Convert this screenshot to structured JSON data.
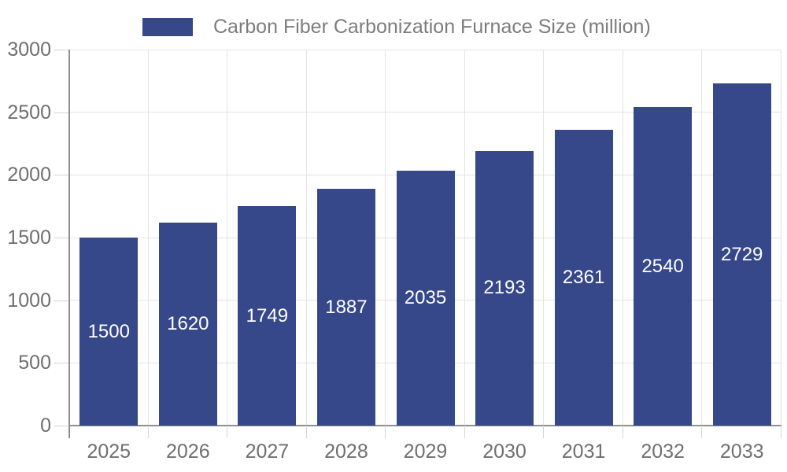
{
  "legend": {
    "label": "Carbon Fiber Carbonization Furnace Size (million)"
  },
  "colors": {
    "bar": "#36478A",
    "grid_line": "#E4E4E4",
    "tick_line": "#D6D6D6",
    "axis_line": "#8F8F8F",
    "tick_label": "#6F6F6F",
    "legend_text": "#7D7D7D",
    "value_label": "#FFFFFF",
    "background": "#FFFFFF"
  },
  "chart_data": {
    "type": "bar",
    "title": "Carbon Fiber Carbonization Furnace Size (million)",
    "categories": [
      "2025",
      "2026",
      "2027",
      "2028",
      "2029",
      "2030",
      "2031",
      "2032",
      "2033"
    ],
    "series": [
      {
        "name": "Carbon Fiber Carbonization Furnace Size (million)",
        "values": [
          1500,
          1620,
          1749,
          1887,
          2035,
          2193,
          2361,
          2540,
          2729
        ]
      }
    ],
    "xlabel": "",
    "ylabel": "",
    "ylim": [
      0,
      3000
    ],
    "y_ticks": [
      0,
      500,
      1000,
      1500,
      2000,
      2500,
      3000
    ],
    "grid": true,
    "legend_position": "top",
    "value_label_position": "inside-middle"
  }
}
